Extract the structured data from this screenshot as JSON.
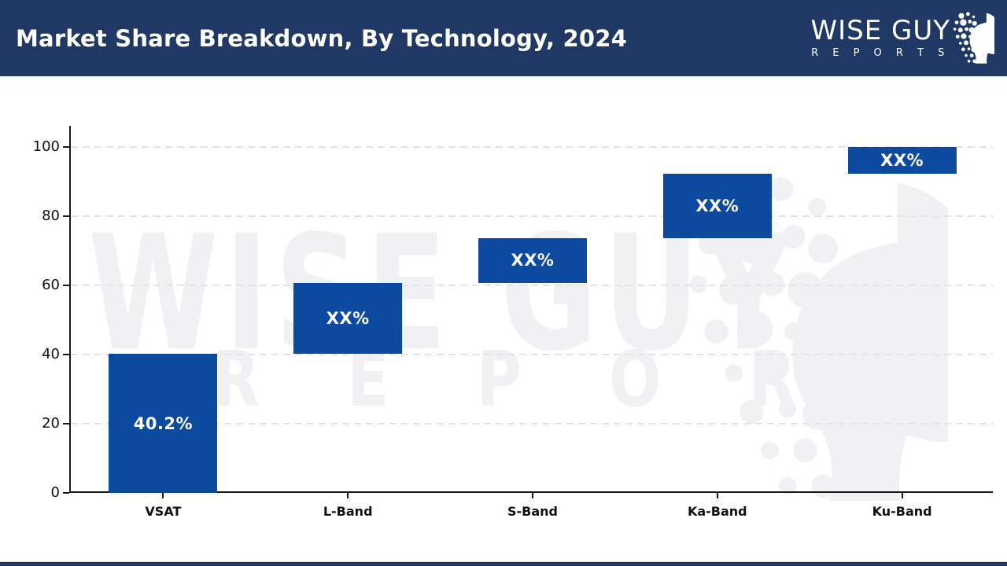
{
  "header": {
    "title": "Market Share Breakdown, By Technology, 2024",
    "logo_text": "WISE GUY",
    "logo_subtext": "R E P O R T S",
    "bg_color": "#203864"
  },
  "watermark": {
    "line1": "WISE GUY",
    "line2": "R E P O R T S"
  },
  "chart_data": {
    "type": "bar",
    "subtype": "waterfall",
    "title": "Market Share Breakdown, By Technology, 2024",
    "categories": [
      "VSAT",
      "L-Band",
      "S-Band",
      "Ka-Band",
      "Ku-Band"
    ],
    "bars": [
      {
        "category": "VSAT",
        "start": 0,
        "end": 40.2,
        "label": "40.2%"
      },
      {
        "category": "L-Band",
        "start": 40.2,
        "end": 60.7,
        "label": "XX%"
      },
      {
        "category": "S-Band",
        "start": 60.7,
        "end": 73.7,
        "label": "XX%"
      },
      {
        "category": "Ka-Band",
        "start": 73.7,
        "end": 92.3,
        "label": "XX%"
      },
      {
        "category": "Ku-Band",
        "start": 92.3,
        "end": 100,
        "label": "XX%"
      }
    ],
    "yticks": [
      0,
      20,
      40,
      60,
      80,
      100
    ],
    "ylim": [
      0,
      106.2
    ],
    "xlabel": "",
    "ylabel": "",
    "grid": "horizontal-dashed",
    "legend": "none",
    "bar_color": "#0b4a9e",
    "bar_label_color": "#ffffff",
    "axis_color": "#1a1a1a",
    "gridline_color": "#e4e4e6"
  }
}
